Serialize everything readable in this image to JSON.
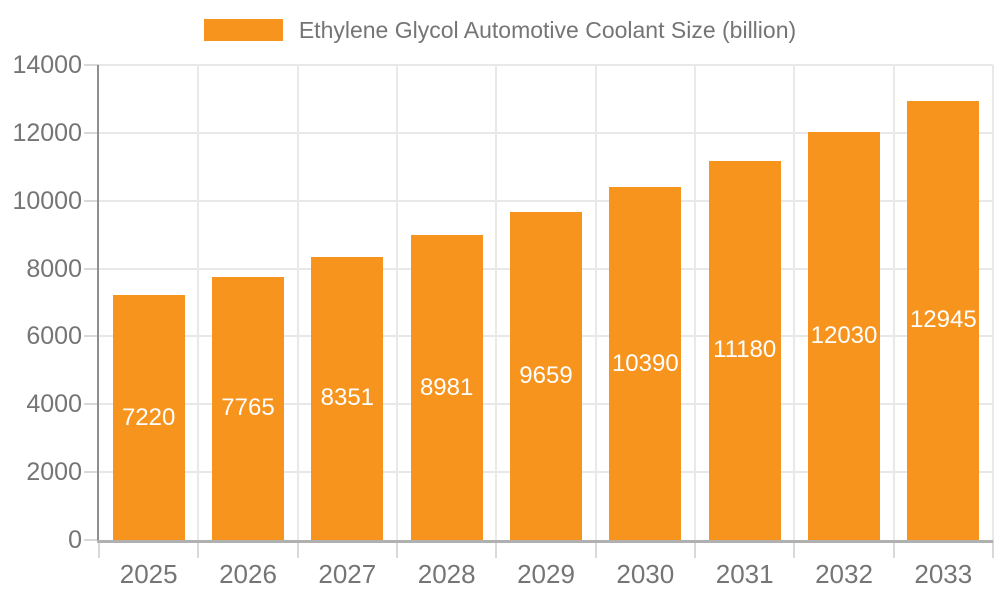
{
  "legend": {
    "label": "Ethylene Glycol Automotive Coolant Size (billion)"
  },
  "colors": {
    "bar": "#F7941D",
    "axis_text": "#757575",
    "value_label": "#FFFFFF",
    "grid": "#E8E8E8",
    "y_axis_line": "#8F8F8F",
    "x_axis_line": "#B0B0B0",
    "tick": "#D9D9D9",
    "background": "#FFFFFF"
  },
  "chart_data": {
    "type": "bar",
    "title": "Ethylene Glycol Automotive Coolant Size (billion)",
    "categories": [
      "2025",
      "2026",
      "2027",
      "2028",
      "2029",
      "2030",
      "2031",
      "2032",
      "2033"
    ],
    "values": [
      7220,
      7765,
      8351,
      8981,
      9659,
      10390,
      11180,
      12030,
      12945
    ],
    "series_name": "Ethylene Glycol Automotive Coolant Size (billion)",
    "xlabel": "",
    "ylabel": "",
    "ylim": [
      0,
      14000
    ],
    "ytick_step": 2000,
    "ytick_labels": [
      "0",
      "2000",
      "4000",
      "6000",
      "8000",
      "10000",
      "12000",
      "14000"
    ],
    "grid": true,
    "legend_position": "top-center",
    "value_label_position": "inside-center"
  }
}
